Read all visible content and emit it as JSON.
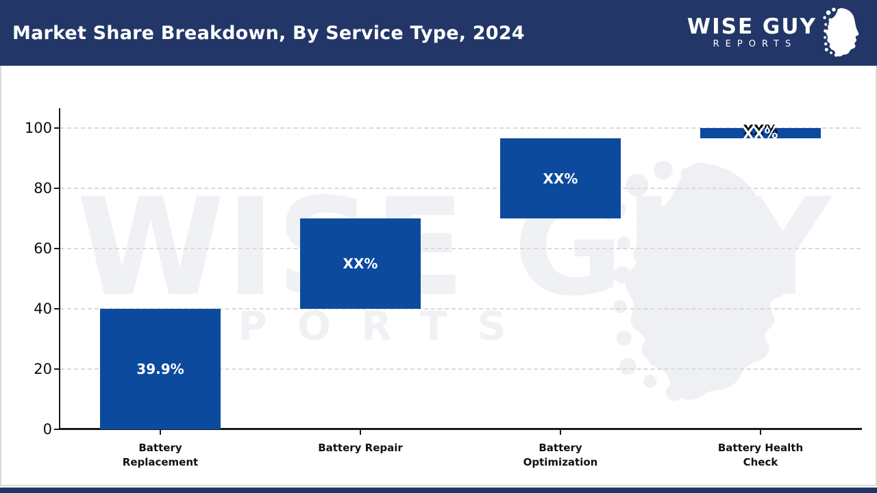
{
  "header": {
    "title": "Market Share Breakdown, By Service Type, 2024",
    "logo": {
      "name": "WISE GUY",
      "tagline": "REPORTS"
    }
  },
  "watermark": {
    "line1": "WISE GUY",
    "line2": "REPORTS"
  },
  "colors": {
    "header_bg": "#223768",
    "footer_bg": "#223768",
    "bar_blue": "#0c4a9e",
    "bar_label": "#ffffff",
    "gridline": "#d9d9d9",
    "axis": "#1a1a1a",
    "watermark": "#f0f1f4"
  },
  "chart_data": {
    "type": "bar",
    "subtype": "waterfall",
    "title": "Market Share Breakdown, By Service Type, 2024",
    "categories": [
      "Battery Replacement",
      "Battery Repair",
      "Battery Optimization",
      "Battery Health Check"
    ],
    "categories_lines": [
      [
        "Battery",
        "Replacement"
      ],
      [
        "Battery Repair"
      ],
      [
        "Battery",
        "Optimization"
      ],
      [
        "Battery Health",
        "Check"
      ]
    ],
    "segments": [
      {
        "category": "Battery Replacement",
        "start": 0,
        "end": 39.9,
        "label": "39.9%"
      },
      {
        "category": "Battery Repair",
        "start": 40,
        "end": 70,
        "label": "XX%"
      },
      {
        "category": "Battery Optimization",
        "start": 70,
        "end": 96.5,
        "label": "XX%"
      },
      {
        "category": "Battery Health Check",
        "start": 96.5,
        "end": 100,
        "label": "XX%"
      }
    ],
    "estimated_sizes": [
      39.9,
      30,
      26.5,
      3.5
    ],
    "ylabel": "",
    "xlabel": "",
    "yticks": [
      0,
      20,
      40,
      60,
      80,
      100
    ],
    "ylim": [
      0,
      106
    ],
    "grid": "horizontal dashed",
    "legend": "none"
  }
}
